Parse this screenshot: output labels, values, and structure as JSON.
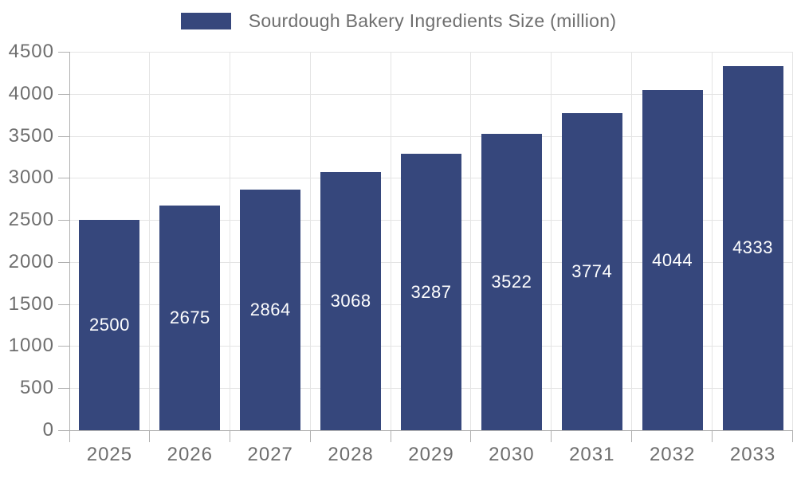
{
  "legend": {
    "label": "Sourdough Bakery Ingredients Size (million)"
  },
  "chart_data": {
    "type": "bar",
    "title": "Sourdough Bakery Ingredients Size (million)",
    "categories": [
      "2025",
      "2026",
      "2027",
      "2028",
      "2029",
      "2030",
      "2031",
      "2032",
      "2033"
    ],
    "values": [
      2500,
      2675,
      2864,
      3068,
      3287,
      3522,
      3774,
      4044,
      4333
    ],
    "xlabel": "",
    "ylabel": "",
    "ylim": [
      0,
      4500
    ],
    "ytick_step": 500,
    "grid": true,
    "legend_position": "top-center",
    "bar_color": "#36477c",
    "bar_label_color": "#ffffff",
    "axis_text_color": "#6e6e6e",
    "gridline_color": "#e4e4e4",
    "axis_line_color": "#b0b0b0"
  }
}
